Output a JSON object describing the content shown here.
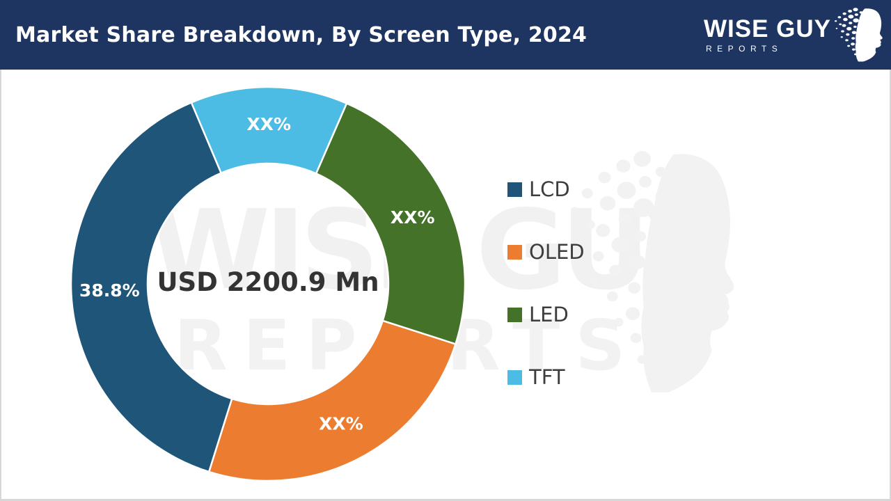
{
  "header": {
    "title": "Market Share Breakdown, By Screen Type, 2024",
    "logo": {
      "name": "WISE GUY",
      "tagline": "REPORTS"
    }
  },
  "watermark": {
    "line1": "WISE GUY",
    "line2": "REPORTS"
  },
  "chart_data": {
    "type": "pie",
    "subtype": "donut",
    "title": "Market Share Breakdown, By Screen Type, 2024",
    "center_label": "USD 2200.9 Mn",
    "start_angle_deg": 112.9,
    "direction": "counterclockwise",
    "inner_radius_ratio": 0.61,
    "legend_position": "right",
    "segments": [
      {
        "name": "LCD",
        "value_pct": 38.8,
        "display_label": "38.8%",
        "color": "#1F5578"
      },
      {
        "name": "OLED",
        "value_pct": 24.9,
        "display_label": "XX%",
        "color": "#EC7D30"
      },
      {
        "name": "LED",
        "value_pct": 23.4,
        "display_label": "XX%",
        "color": "#447228"
      },
      {
        "name": "TFT",
        "value_pct": 12.9,
        "display_label": "XX%",
        "color": "#4CBCE4"
      }
    ]
  },
  "legend": {
    "items": [
      {
        "label": "LCD",
        "color": "#1F5578"
      },
      {
        "label": "OLED",
        "color": "#EC7D30"
      },
      {
        "label": "LED",
        "color": "#447228"
      },
      {
        "label": "TFT",
        "color": "#4CBCE4"
      }
    ]
  },
  "colors": {
    "header_bg": "#1E3461",
    "content_border": "#d7d7d7",
    "watermark": "#f1f1f1",
    "center_text": "#333333"
  }
}
